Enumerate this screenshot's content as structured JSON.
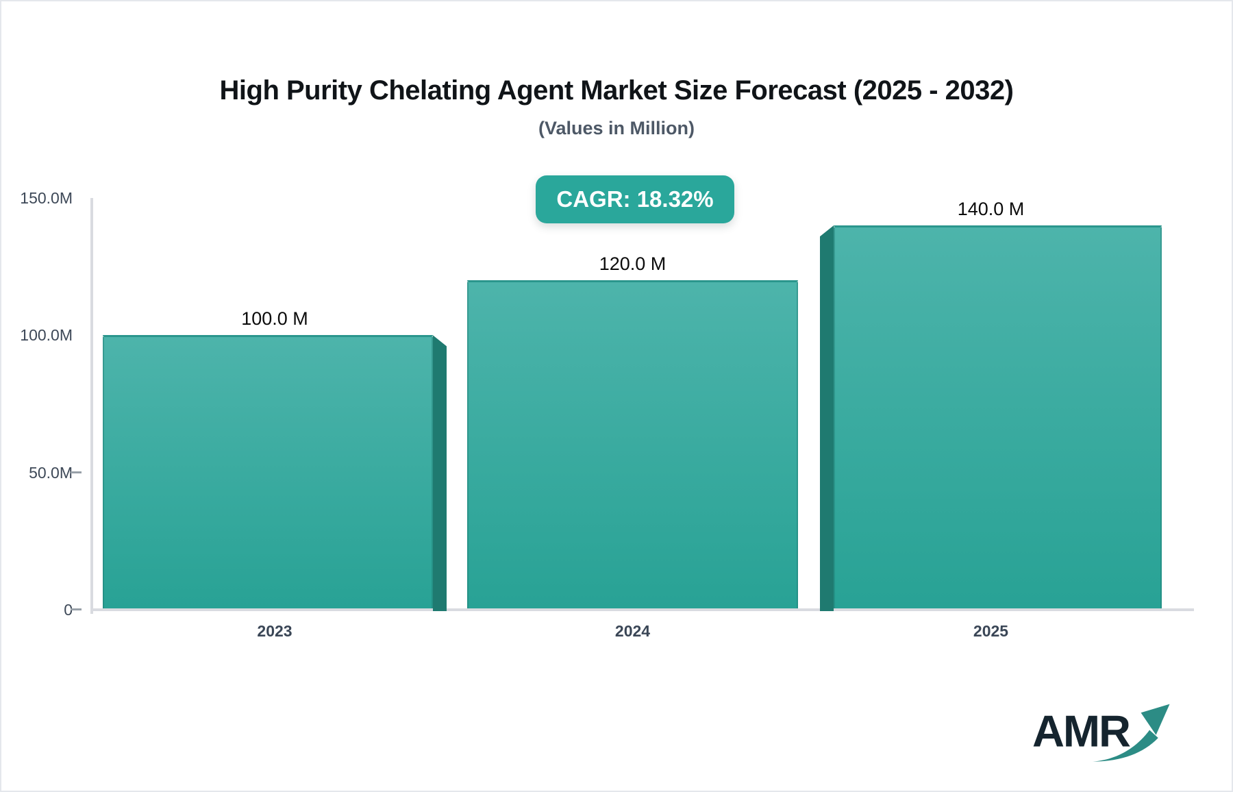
{
  "title": "High Purity Chelating Agent Market Size Forecast (2025 - 2032)",
  "subtitle": "(Values in Million)",
  "cagr_badge": "CAGR: 18.32%",
  "logo": {
    "text": "AMR"
  },
  "colors": {
    "bar_top": "#4db4ab",
    "bar_bottom": "#28a295",
    "bar_side": "#1f7a70",
    "bar_top_edge": "#2b968d",
    "badge_bg": "#2aa79b",
    "axis_line": "#d9dbe0",
    "axis_label": "#3d4857",
    "value_label": "#0b0b0b",
    "title_color": "#101418",
    "subtitle_color": "#4d5866",
    "logo_text": "#15242e",
    "logo_arrow": "#2c8c85"
  },
  "chart_data": {
    "type": "bar",
    "title": "High Purity Chelating Agent Market Size Forecast (2025 - 2032)",
    "subtitle": "(Values in Million)",
    "unit": "Million",
    "cagr": "18.32%",
    "categories": [
      "2023",
      "2024",
      "2025"
    ],
    "values": [
      100.0,
      120.0,
      140.0
    ],
    "value_labels": [
      "100.0 M",
      "120.0 M",
      "140.0 M"
    ],
    "xlabel": "",
    "ylabel": "",
    "ylim": [
      0,
      150
    ],
    "yticks": [
      {
        "value": 0,
        "label": "0"
      },
      {
        "value": 50,
        "label": "50.0M"
      },
      {
        "value": 100,
        "label": "100.0M"
      },
      {
        "value": 150,
        "label": "150.0M"
      }
    ],
    "grid": false,
    "legend": null
  }
}
